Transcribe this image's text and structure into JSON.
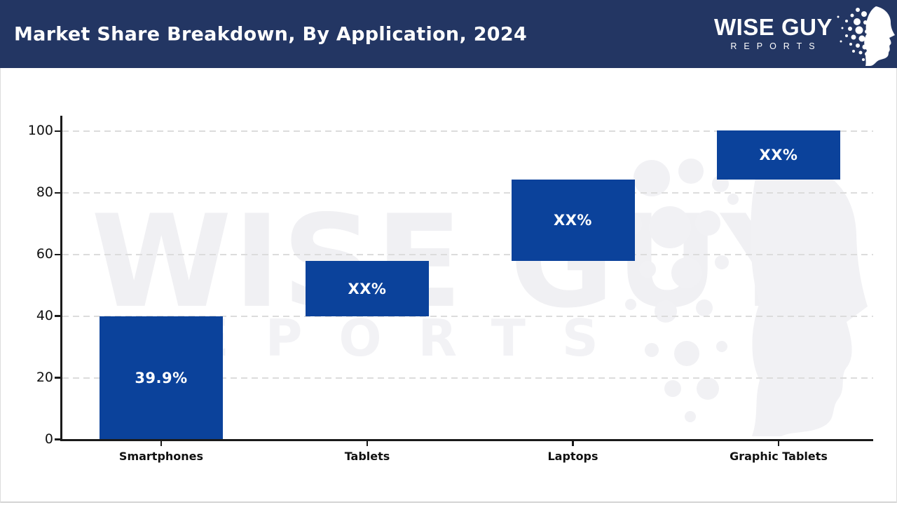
{
  "header": {
    "title": "Market Share Breakdown, By Application, 2024",
    "bg_color": "#233663",
    "logo": {
      "line1": "WISE GUY",
      "line2": "REPORTS"
    }
  },
  "watermark": {
    "line1": "WISE GUY",
    "line2": "REPORTS"
  },
  "chart_data": {
    "type": "bar",
    "variant": "floating-waterfall-segments",
    "title": "Market Share Breakdown, By Application, 2024",
    "categories": [
      "Smartphones",
      "Tablets",
      "Laptops",
      "Graphic Tablets"
    ],
    "segments": [
      {
        "category": "Smartphones",
        "start": 0,
        "end": 39.9,
        "label": "39.9%"
      },
      {
        "category": "Tablets",
        "start": 39.9,
        "end": 57.8,
        "label": "XX%"
      },
      {
        "category": "Laptops",
        "start": 57.8,
        "end": 84.3,
        "label": "XX%"
      },
      {
        "category": "Graphic Tablets",
        "start": 84.3,
        "end": 100.2,
        "label": "XX%"
      }
    ],
    "xlabel": "",
    "ylabel": "",
    "ylim": [
      0,
      105
    ],
    "yticks": [
      0,
      20,
      40,
      60,
      80,
      100
    ],
    "grid": "horizontal-dashed",
    "legend": "none",
    "bar_color": "#0B429B",
    "bar_label_color": "#FFFFFF",
    "axis_color": "#1A1A1A",
    "gridline_color": "#DCDCDC",
    "tick_label_color": "#111111"
  }
}
